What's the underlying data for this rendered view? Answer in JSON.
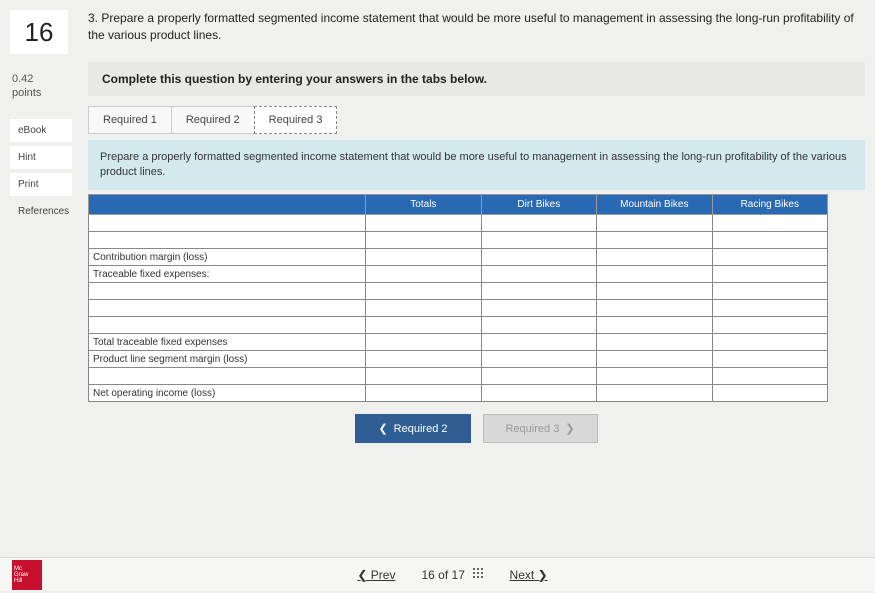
{
  "question_number": "16",
  "points_value": "0.42",
  "points_label": "points",
  "question_text": "3. Prepare a properly formatted segmented income statement that would be more useful to management in assessing the long-run profitability of the various product lines.",
  "instruction": "Complete this question by entering your answers in the tabs below.",
  "side_links": {
    "ebook": "eBook",
    "hint": "Hint",
    "print": "Print",
    "references": "References"
  },
  "tabs": {
    "r1": "Required 1",
    "r2": "Required 2",
    "r3": "Required 3"
  },
  "prompt": "Prepare a properly formatted segmented income statement that would be more useful to management in assessing the long-run profitability of the various product lines.",
  "table": {
    "headers": {
      "totals": "Totals",
      "dirt": "Dirt Bikes",
      "mountain": "Mountain Bikes",
      "racing": "Racing Bikes"
    },
    "rows": {
      "cm": "Contribution margin (loss)",
      "tfe": "Traceable fixed expenses:",
      "ttfe": "Total traceable fixed expenses",
      "plsm": "Product line segment margin (loss)",
      "noi": "Net operating income (loss)"
    }
  },
  "nav_buttons": {
    "prev": "Required 2",
    "next": "Required 3"
  },
  "footer": {
    "logo_lines": {
      "l1": "Mc",
      "l2": "Graw",
      "l3": "Hill"
    },
    "prev": "Prev",
    "counter_cur": "16",
    "counter_of": "of",
    "counter_total": "17",
    "next": "Next"
  }
}
